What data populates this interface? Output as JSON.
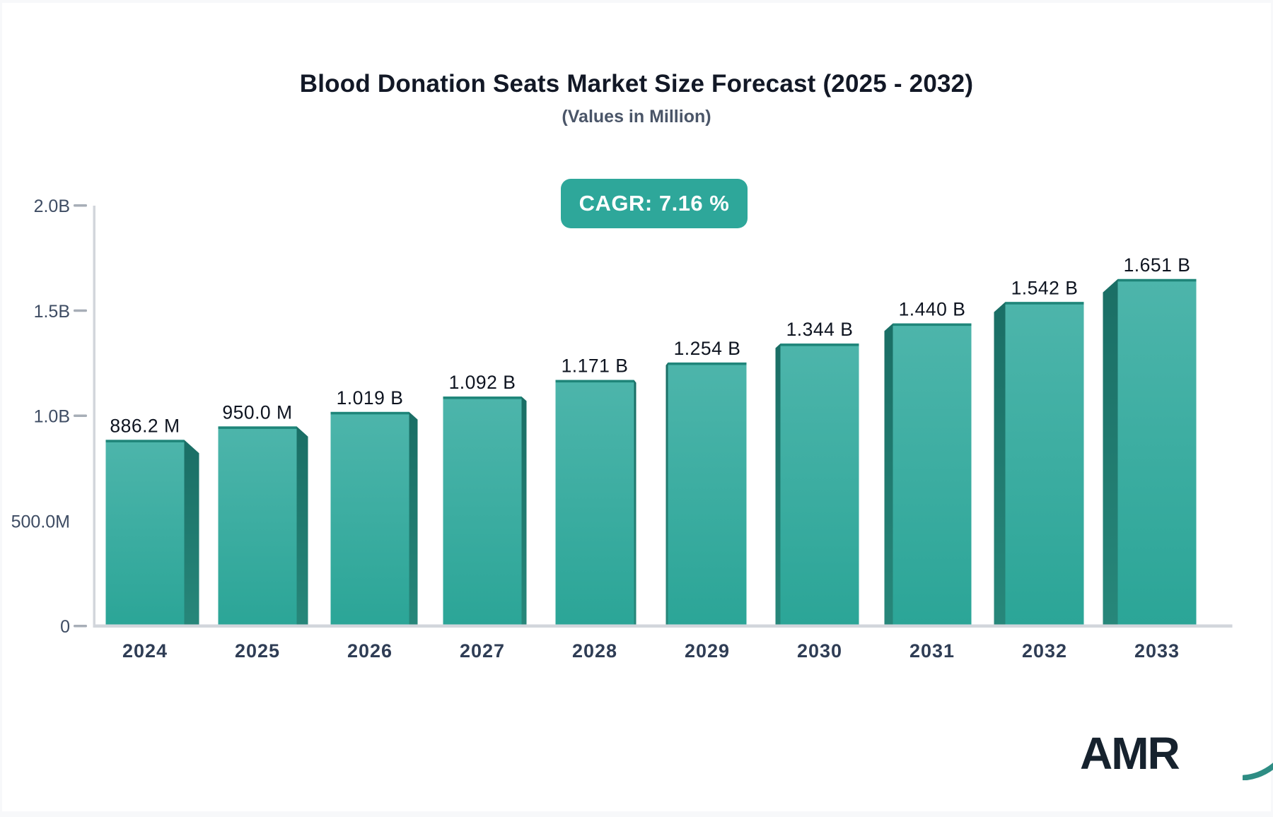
{
  "page": {
    "brand": "AMR"
  },
  "colors": {
    "page_bg": "#F7F8FA",
    "card_bg": "#FFFFFF",
    "accent_badge": "#2EA79A",
    "badge_text": "#FFFFFF",
    "title_text": "#121826",
    "subtitle_text": "#4A5568",
    "bar_face_top": "#4DB5AB",
    "bar_face_bottom": "#2BA597",
    "bar_top_edge": "#1F8579",
    "bar_side_top": "#1A6E65",
    "bar_side_bottom": "#27877A",
    "axis_line": "#D2D6DC",
    "tick_dash": "#A7AEB7",
    "ytick_text": "#3E4C63",
    "xtick_text": "#2F3D55",
    "value_text": "#0E1420",
    "logo_text": "#16222E",
    "logo_arrow": "#2E8D84"
  },
  "chart_data": {
    "type": "bar",
    "title": "Blood Donation Seats Market Size Forecast (2025 - 2032)",
    "subtitle": "(Values in Million)",
    "cagr_badge": "CAGR: 7.16 %",
    "categories": [
      "2024",
      "2025",
      "2026",
      "2027",
      "2028",
      "2029",
      "2030",
      "2031",
      "2032",
      "2033"
    ],
    "values_billions": [
      0.8862,
      0.95,
      1.019,
      1.092,
      1.171,
      1.254,
      1.344,
      1.44,
      1.542,
      1.651
    ],
    "value_labels": [
      "886.2 M",
      "950.0 M",
      "1.019 B",
      "1.092 B",
      "1.171 B",
      "1.254 B",
      "1.344 B",
      "1.440 B",
      "1.542 B",
      "1.651 B"
    ],
    "ylabel_ticks": [
      {
        "label": "2.0B",
        "value": 2.0,
        "dash": true
      },
      {
        "label": "1.5B",
        "value": 1.5,
        "dash": true
      },
      {
        "label": "1.0B",
        "value": 1.0,
        "dash": true
      },
      {
        "label": "500.0M",
        "value": 0.5,
        "dash": false
      },
      {
        "label": "0",
        "value": 0.0,
        "dash": true
      }
    ],
    "ylim": [
      0,
      2.0
    ],
    "grid": false,
    "legend": false,
    "bar_style": "3d-extruded-teal"
  }
}
